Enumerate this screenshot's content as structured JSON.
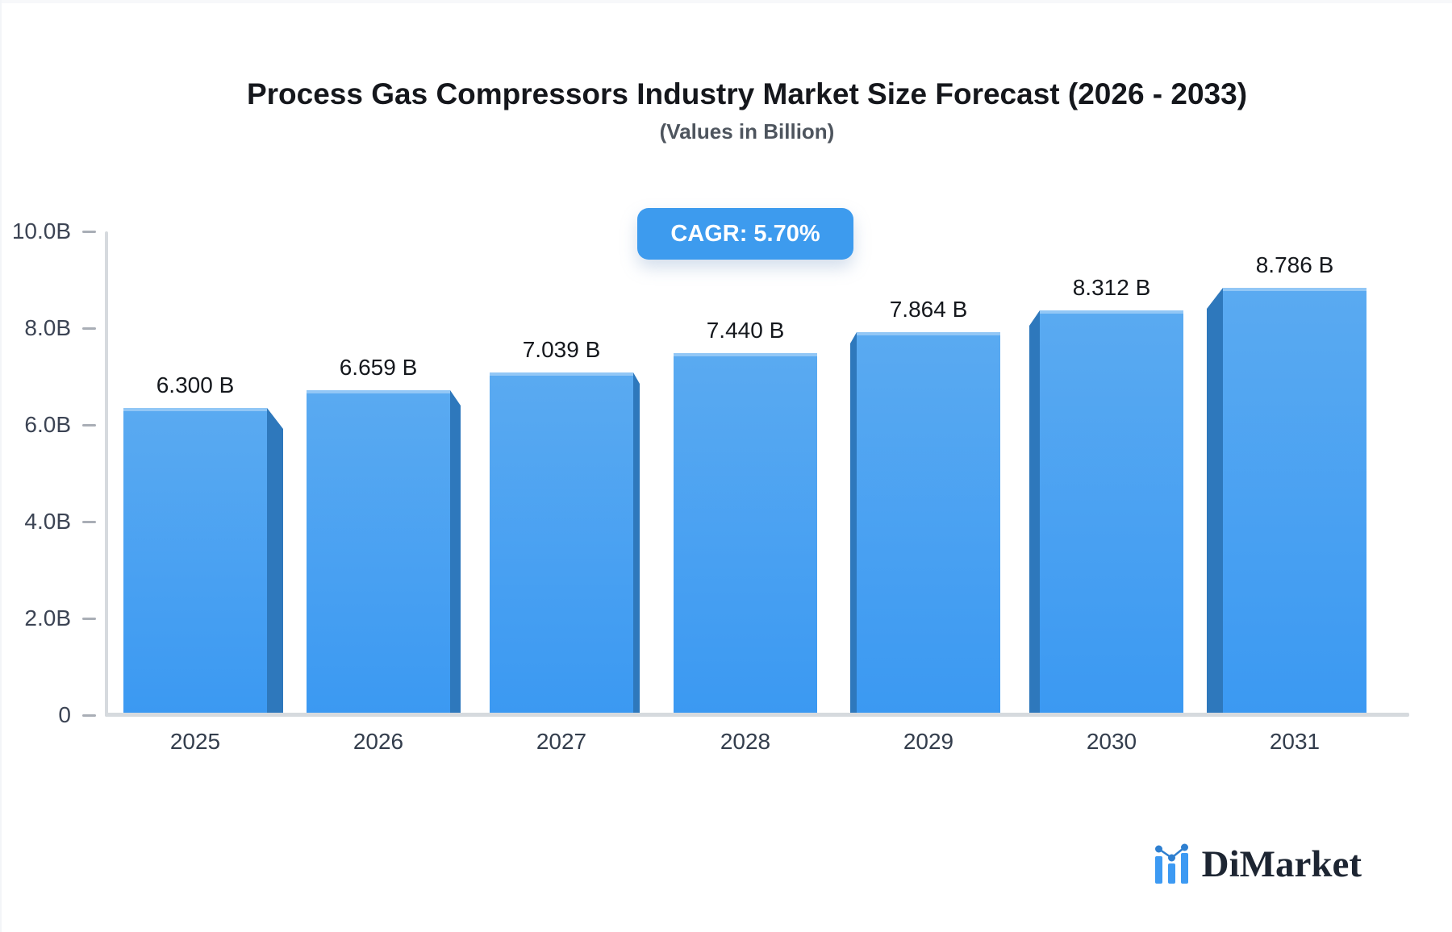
{
  "header": {
    "cagr_badge": "CAGR: 5.70%"
  },
  "chart_data": {
    "type": "bar",
    "title": "Process Gas Compressors Industry Market Size Forecast (2026 - 2033)",
    "subtitle": "(Values in Billion)",
    "unit": "Billion",
    "cagr": "5.70%",
    "categories": [
      "2025",
      "2026",
      "2027",
      "2028",
      "2029",
      "2030",
      "2031"
    ],
    "values": [
      6.3,
      6.659,
      7.039,
      7.44,
      7.864,
      8.312,
      8.786
    ],
    "value_labels": [
      "6.300 B",
      "6.659 B",
      "7.039 B",
      "7.440 B",
      "7.864 B",
      "8.312 B",
      "8.786 B"
    ],
    "ylim": [
      0,
      10
    ],
    "yticks": [
      {
        "label": "10.0B",
        "value": 10
      },
      {
        "label": "8.0B",
        "value": 8
      },
      {
        "label": "6.0B",
        "value": 6
      },
      {
        "label": "4.0B",
        "value": 4
      },
      {
        "label": "2.0B",
        "value": 2
      },
      {
        "label": "0",
        "value": 0
      }
    ],
    "grid": false,
    "legend": "none",
    "bar_style": "3d-perspective"
  },
  "branding": {
    "logo_text": "DiMarket"
  },
  "colors": {
    "bar_top": "#5aaaf1",
    "bar_bottom": "#3b99f2",
    "bar_side": "#2e78bc",
    "badge_bg": "#3d9bee",
    "badge_text": "#ffffff",
    "axis": "#d6dade",
    "tick": "#a9aeb6",
    "tick_label": "#3c4454",
    "year_label": "#333d4c",
    "value_label": "#15181d",
    "title": "#15171c",
    "subtitle": "#4e555e",
    "logo_text": "#1d2532",
    "logo_blue": "#3d9af3",
    "logo_accent": "#2e7fd0"
  }
}
